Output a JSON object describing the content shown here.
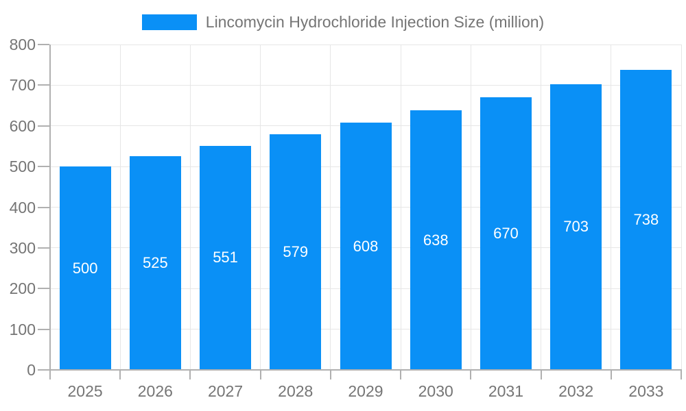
{
  "chart_data": {
    "type": "bar",
    "title": "Lincomycin Hydrochloride Injection Size (million)",
    "categories": [
      "2025",
      "2026",
      "2027",
      "2028",
      "2029",
      "2030",
      "2031",
      "2032",
      "2033"
    ],
    "values": [
      500,
      525,
      551,
      579,
      608,
      638,
      670,
      703,
      738
    ],
    "value_labels": [
      "500",
      "525",
      "551",
      "579",
      "608",
      "638",
      "670",
      "703",
      "738"
    ],
    "xlabel": "",
    "ylabel": "",
    "ylim": [
      0,
      800
    ],
    "yticks": [
      0,
      100,
      200,
      300,
      400,
      500,
      600,
      700,
      800
    ],
    "ytick_labels": [
      "0",
      "100",
      "200",
      "300",
      "400",
      "500",
      "600",
      "700",
      "800"
    ],
    "grid": true,
    "legend_position": "top",
    "colors": {
      "bar": "#0a90f6",
      "value_label": "#ffffff",
      "axis_text": "#757575",
      "gridline": "#e6e6e6",
      "axis_line": "#b0b0b0",
      "background": "#ffffff"
    }
  }
}
